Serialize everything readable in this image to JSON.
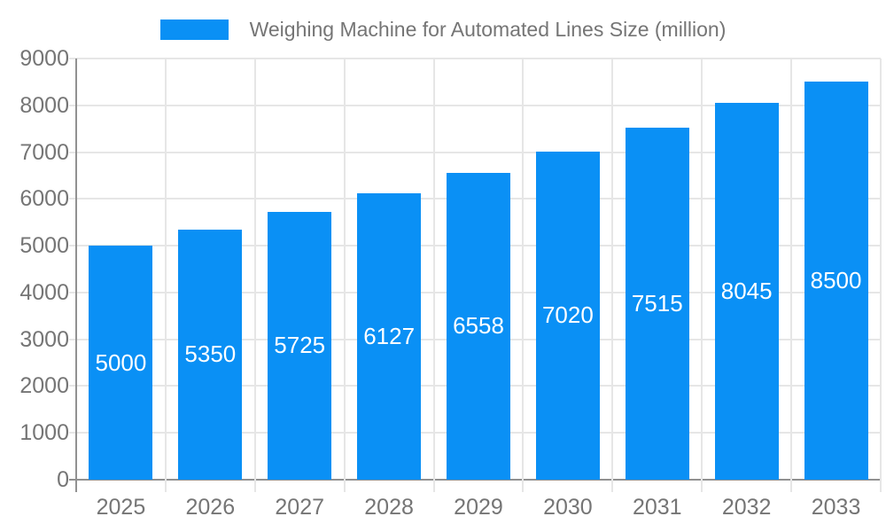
{
  "legend": {
    "label": "Weighing Machine for Automated Lines Size (million)"
  },
  "colors": {
    "bar": "#0a90f5",
    "axis_text": "#757575",
    "axis_line": "#919191",
    "gridline": "#e6e6e6",
    "value_label": "#ffffff",
    "background": "#ffffff"
  },
  "chart_data": {
    "type": "bar",
    "title": "Weighing Machine for Automated Lines Size (million)",
    "categories": [
      "2025",
      "2026",
      "2027",
      "2028",
      "2029",
      "2030",
      "2031",
      "2032",
      "2033"
    ],
    "values": [
      5000,
      5350,
      5725,
      6127,
      6558,
      7020,
      7515,
      8045,
      8500
    ],
    "xlabel": "",
    "ylabel": "",
    "ylim": [
      0,
      9000
    ],
    "ytick_step": 1000,
    "grid": true,
    "legend_position": "top-center",
    "value_labels": "inside-center"
  }
}
